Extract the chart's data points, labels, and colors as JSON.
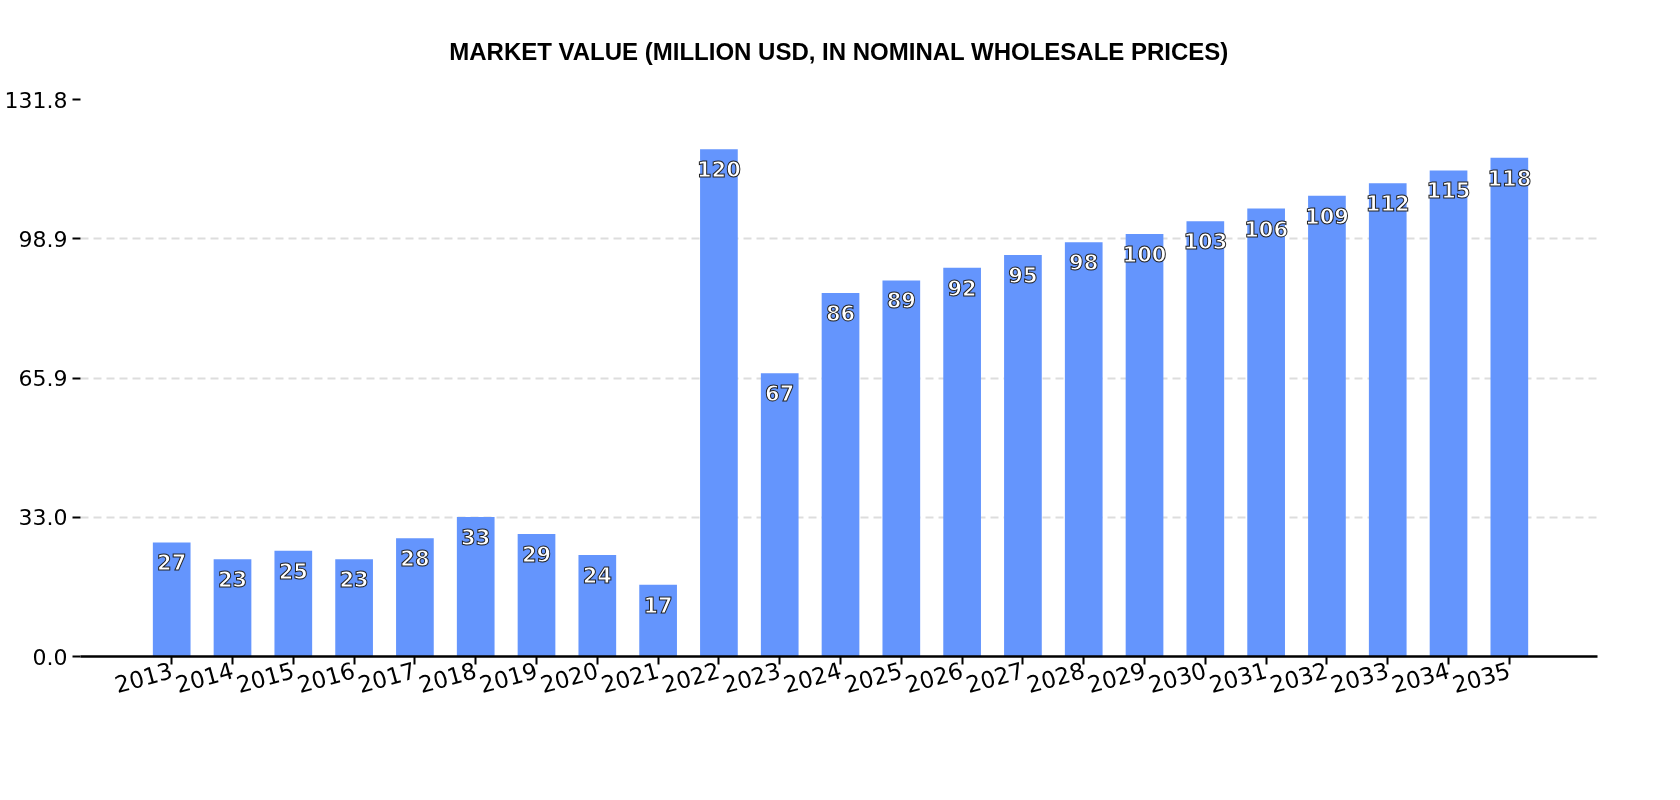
{
  "chart_data": {
    "type": "bar",
    "title": "MARKET VALUE (MILLION USD, IN NOMINAL WHOLESALE PRICES)",
    "categories": [
      "2013",
      "2014",
      "2015",
      "2016",
      "2017",
      "2018",
      "2019",
      "2020",
      "2021",
      "2022",
      "2023",
      "2024",
      "2025",
      "2026",
      "2027",
      "2028",
      "2029",
      "2030",
      "2031",
      "2032",
      "2033",
      "2034",
      "2035"
    ],
    "values": [
      27,
      23,
      25,
      23,
      28,
      33,
      29,
      24,
      17,
      120,
      67,
      86,
      89,
      92,
      95,
      98,
      100,
      103,
      106,
      109,
      112,
      115,
      118
    ],
    "color": "#6495fd",
    "ylim": [
      0,
      131.8
    ],
    "yticks": [
      {
        "value": 0,
        "label": "0.0"
      },
      {
        "value": 32.95,
        "label": "33.0"
      },
      {
        "value": 65.9,
        "label": "65.9"
      },
      {
        "value": 98.85,
        "label": "98.9"
      },
      {
        "value": 131.8,
        "label": "131.8"
      }
    ],
    "grid": "y",
    "data_labels": true
  }
}
